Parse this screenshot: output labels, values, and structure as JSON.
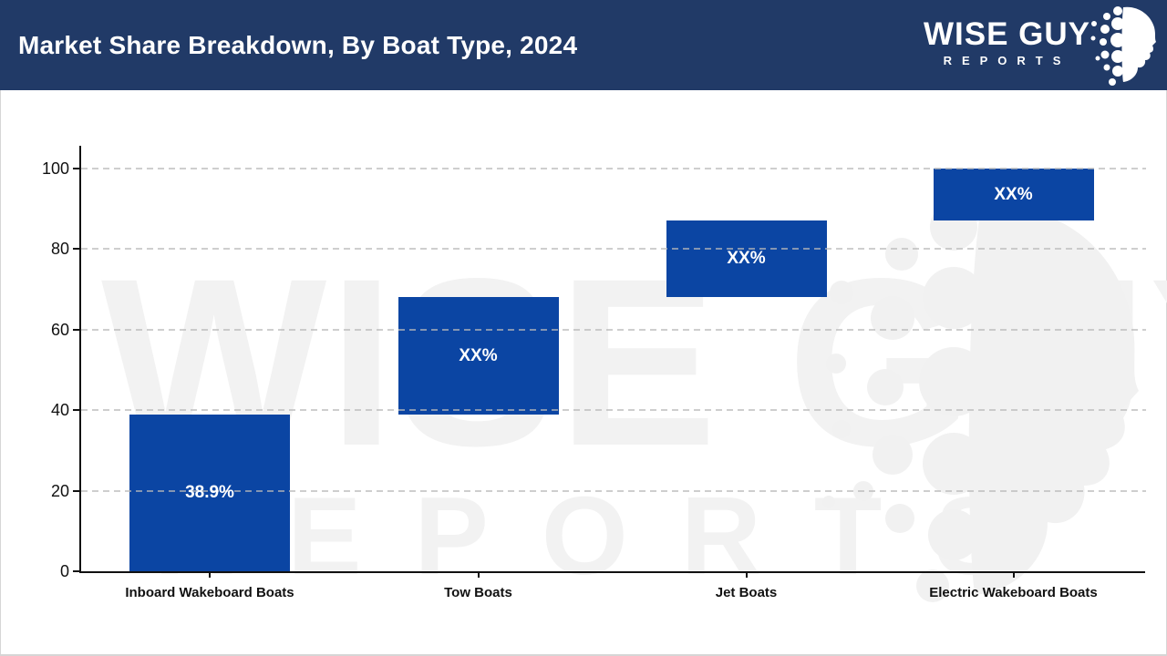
{
  "header": {
    "title": "Market Share Breakdown, By Boat Type, 2024",
    "logo": {
      "name_top": "WISE GUY",
      "name_bottom": "REPORTS"
    }
  },
  "watermark": {
    "line1": "WISE GUY",
    "line2": "REPORTS"
  },
  "chart_data": {
    "type": "bar",
    "subtype": "waterfall",
    "title": "Market Share Breakdown, By Boat Type, 2024",
    "categories": [
      "Inboard Wakeboard Boats",
      "Tow Boats",
      "Jet Boats",
      "Electric Wakeboard Boats"
    ],
    "bars": [
      {
        "category": "Inboard Wakeboard Boats",
        "start": 0,
        "end": 38.9,
        "label": "38.9%"
      },
      {
        "category": "Tow Boats",
        "start": 38.9,
        "end": 68,
        "label": "XX%"
      },
      {
        "category": "Jet Boats",
        "start": 68,
        "end": 87,
        "label": "XX%"
      },
      {
        "category": "Electric Wakeboard Boats",
        "start": 87,
        "end": 100,
        "label": "XX%"
      }
    ],
    "xlabel": "",
    "ylabel": "",
    "ylim": [
      0,
      100
    ],
    "yticks": [
      0,
      20,
      40,
      60,
      80,
      100
    ],
    "grid": "horizontal-dashed",
    "legend": "none",
    "bar_color": "#0b45a3",
    "value_label_color": "#ffffff"
  },
  "colors": {
    "header_bg": "#213a67",
    "bar_blue": "#0b45a3",
    "axis": "#111111",
    "gridline": "#c9c9c9",
    "watermark": "#f2f2f2",
    "panel_border": "#d6d6d6"
  }
}
